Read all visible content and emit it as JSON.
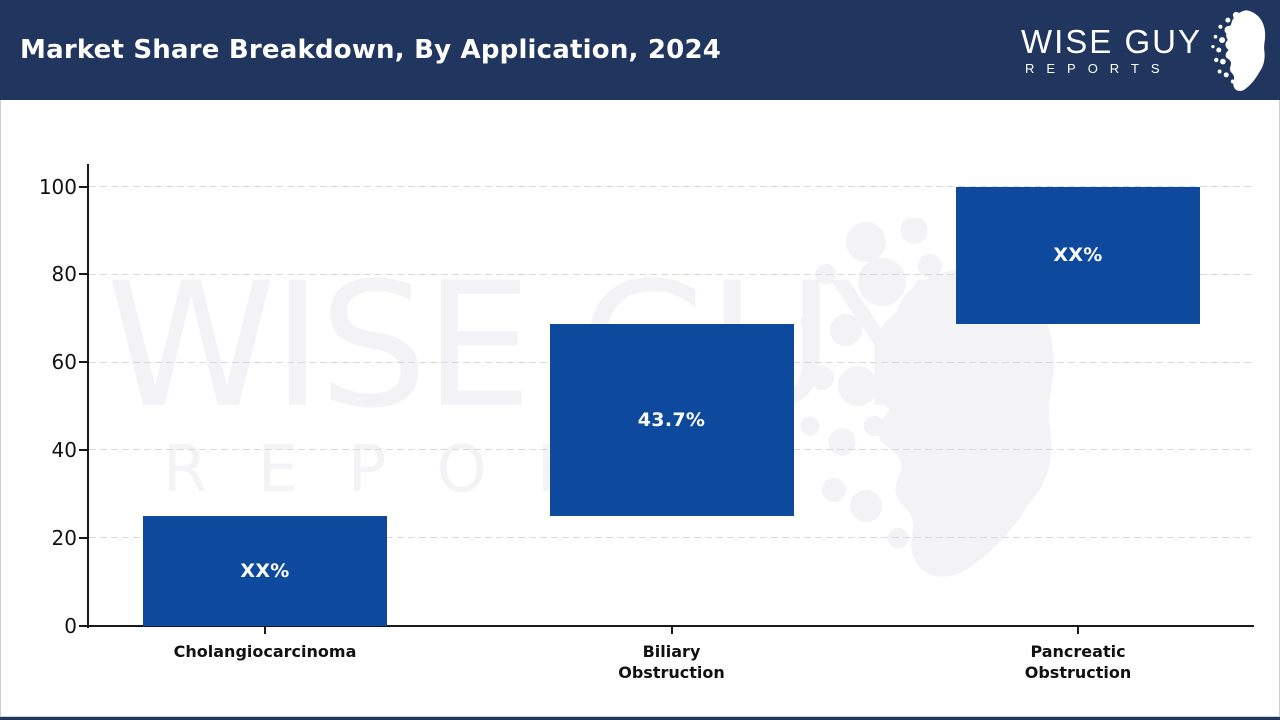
{
  "header": {
    "title": "Market Share Breakdown, By Application, 2024",
    "background_color": "#21365f",
    "logo": {
      "wordmark": "WISE GUY",
      "subtext": "REPORTS"
    }
  },
  "watermark": {
    "wordmark": "WISE GUY",
    "subtext": "REPORTS"
  },
  "chart_data": {
    "type": "bar",
    "subtype": "floating-segment-waterfall",
    "title": "Market Share Breakdown, By Application, 2024",
    "categories": [
      "Cholangiocarcinoma",
      "Biliary Obstruction",
      "Pancreatic Obstruction"
    ],
    "bars": [
      {
        "category": "Cholangiocarcinoma",
        "start": 0,
        "end": 25,
        "label": "XX%"
      },
      {
        "category": "Biliary Obstruction",
        "start": 25,
        "end": 68.7,
        "label": "43.7%"
      },
      {
        "category": "Pancreatic Obstruction",
        "start": 68.7,
        "end": 100,
        "label": "XX%"
      }
    ],
    "xlabel": "",
    "ylabel": "",
    "y_ticks": [
      0,
      20,
      40,
      60,
      80,
      100
    ],
    "ylim": [
      0,
      105
    ],
    "bar_color": "#0d4a9e",
    "grid": "horizontal-dashed",
    "legend": "none"
  }
}
